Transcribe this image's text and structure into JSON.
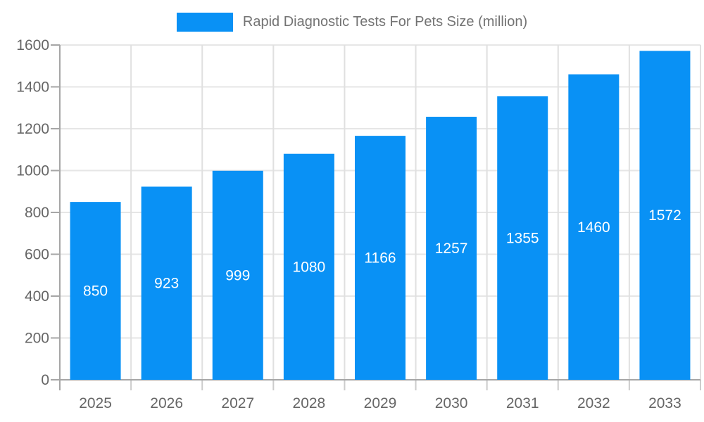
{
  "legend": {
    "label": "Rapid Diagnostic Tests For Pets Size (million)"
  },
  "chart_data": {
    "type": "bar",
    "title": "Rapid Diagnostic Tests For Pets Size (million)",
    "categories": [
      "2025",
      "2026",
      "2027",
      "2028",
      "2029",
      "2030",
      "2031",
      "2032",
      "2033"
    ],
    "values": [
      850,
      923,
      999,
      1080,
      1166,
      1257,
      1355,
      1460,
      1572
    ],
    "xlabel": "",
    "ylabel": "",
    "ylim": [
      0,
      1600
    ],
    "ytick_step": 200,
    "grid": true,
    "legend_position": "top",
    "colors": {
      "bar": "#0991f5",
      "value_label": "#ffffff",
      "axis_label": "#666666",
      "title_text": "#737373",
      "grid_horizontal": "#e6e6e6",
      "grid_vertical": "#e0e0e0",
      "axis_line": "#a6a6a6",
      "tick_mark": "#cccccc"
    }
  }
}
